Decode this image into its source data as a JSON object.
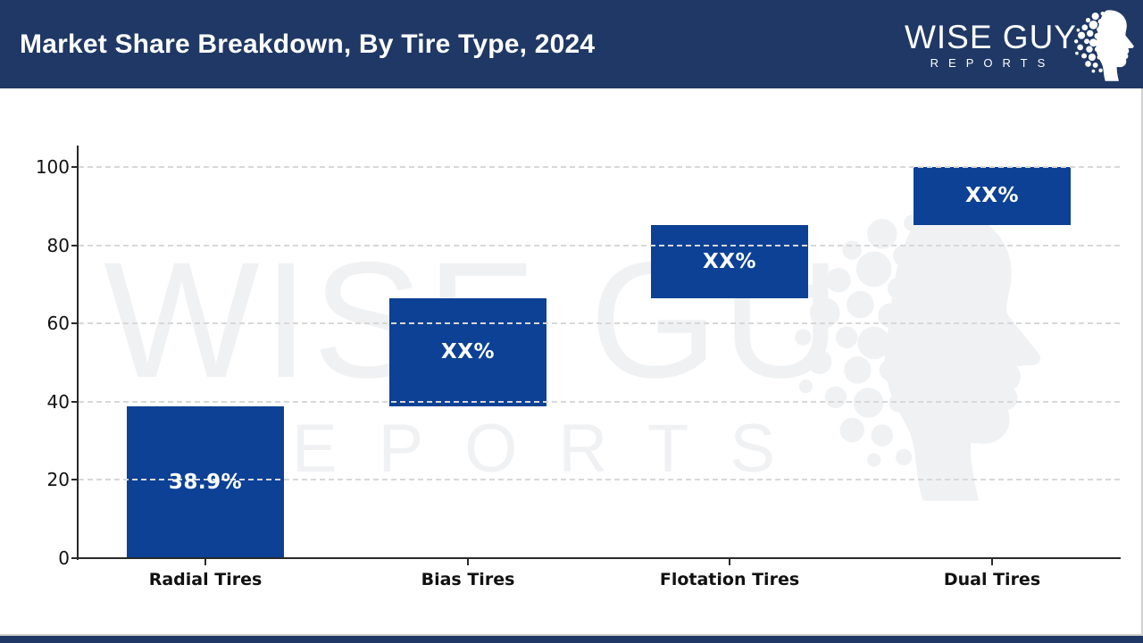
{
  "theme": {
    "navy": "#1f3865",
    "bar_blue": "#0c4195",
    "watermark_gray": "#f0f1f3",
    "grid_gray": "#d8d8d8",
    "axis_dark": "#2a2a2a"
  },
  "header": {
    "title": "Market Share Breakdown, By Tire Type, 2024",
    "brand": {
      "line1": "WISE GUY",
      "line2": "REPORTS"
    }
  },
  "watermark": {
    "line1": "WISE GU",
    "line2": "REPORTS"
  },
  "chart_data": {
    "type": "bar",
    "subtype": "waterfall",
    "title": "Market Share Breakdown, By Tire Type, 2024",
    "categories": [
      "Radial Tires",
      "Bias Tires",
      "Flotation Tires",
      "Dual Tires"
    ],
    "values": [
      38.9,
      27.6,
      18.7,
      14.8
    ],
    "labels": [
      "38.9%",
      "XX%",
      "XX%",
      "XX%"
    ],
    "segments": [
      {
        "category": "Radial Tires",
        "start": 0,
        "end": 38.9,
        "label": "38.9%"
      },
      {
        "category": "Bias Tires",
        "start": 38.9,
        "end": 66.5,
        "label": "XX%"
      },
      {
        "category": "Flotation Tires",
        "start": 66.5,
        "end": 85.2,
        "label": "XX%"
      },
      {
        "category": "Dual Tires",
        "start": 85.2,
        "end": 100,
        "label": "XX%"
      }
    ],
    "xlabel": "",
    "ylabel": "",
    "ylim": [
      0,
      105.5
    ],
    "yticks": [
      0,
      20,
      40,
      60,
      80,
      100
    ],
    "grid": "horizontal-dashed-above-bars",
    "legend": "none",
    "bar_color": "#0c4195",
    "bar_label_color": "#ffffff"
  }
}
